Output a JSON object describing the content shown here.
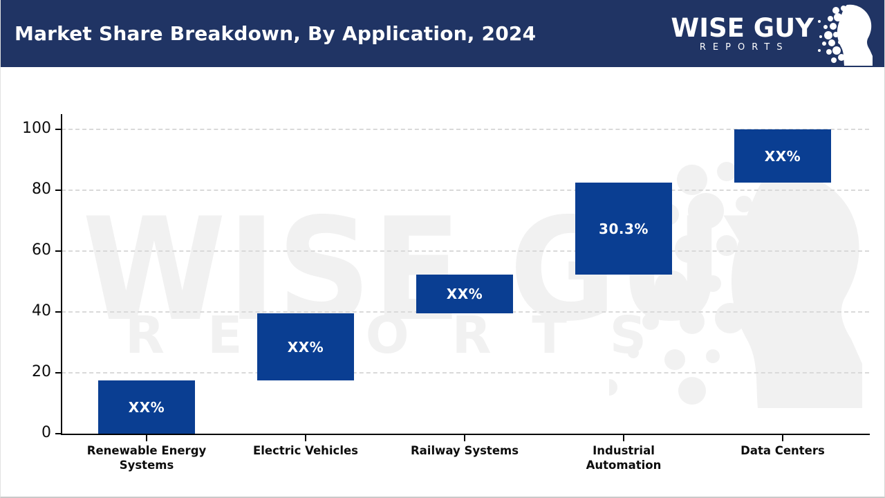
{
  "header": {
    "title": "Market Share Breakdown, By Application, 2024",
    "logo": {
      "primary": "WISE GUY",
      "secondary": "REPORTS"
    }
  },
  "watermark": {
    "line1": "WISE GUY",
    "line2": "REPORTS"
  },
  "chart_data": {
    "type": "bar",
    "subtype": "waterfall",
    "title": "Market Share Breakdown, By Application, 2024",
    "categories": [
      "Renewable Energy Systems",
      "Electric Vehicles",
      "Railway Systems",
      "Industrial Automation",
      "Data Centers"
    ],
    "segments": [
      {
        "category": "Renewable Energy Systems",
        "start": 0,
        "end": 17.5,
        "label": "XX%"
      },
      {
        "category": "Electric Vehicles",
        "start": 17.5,
        "end": 39.5,
        "label": "XX%"
      },
      {
        "category": "Railway Systems",
        "start": 39.5,
        "end": 52.2,
        "label": "XX%"
      },
      {
        "category": "Industrial Automation",
        "start": 52.2,
        "end": 82.5,
        "label": "30.3%"
      },
      {
        "category": "Data Centers",
        "start": 82.5,
        "end": 100,
        "label": "XX%"
      }
    ],
    "yticks": [
      0,
      20,
      40,
      60,
      80,
      100
    ],
    "ylim": [
      0,
      105
    ],
    "xlabel": "",
    "ylabel": "",
    "grid": "horizontal-dashed",
    "legend": "none"
  },
  "colors": {
    "header_bg": "#203464",
    "bar": "#0a3e92",
    "bar_label": "#ffffff",
    "grid": "#d9d9d9",
    "axis": "#000000",
    "watermark": "#f1f1f1"
  }
}
